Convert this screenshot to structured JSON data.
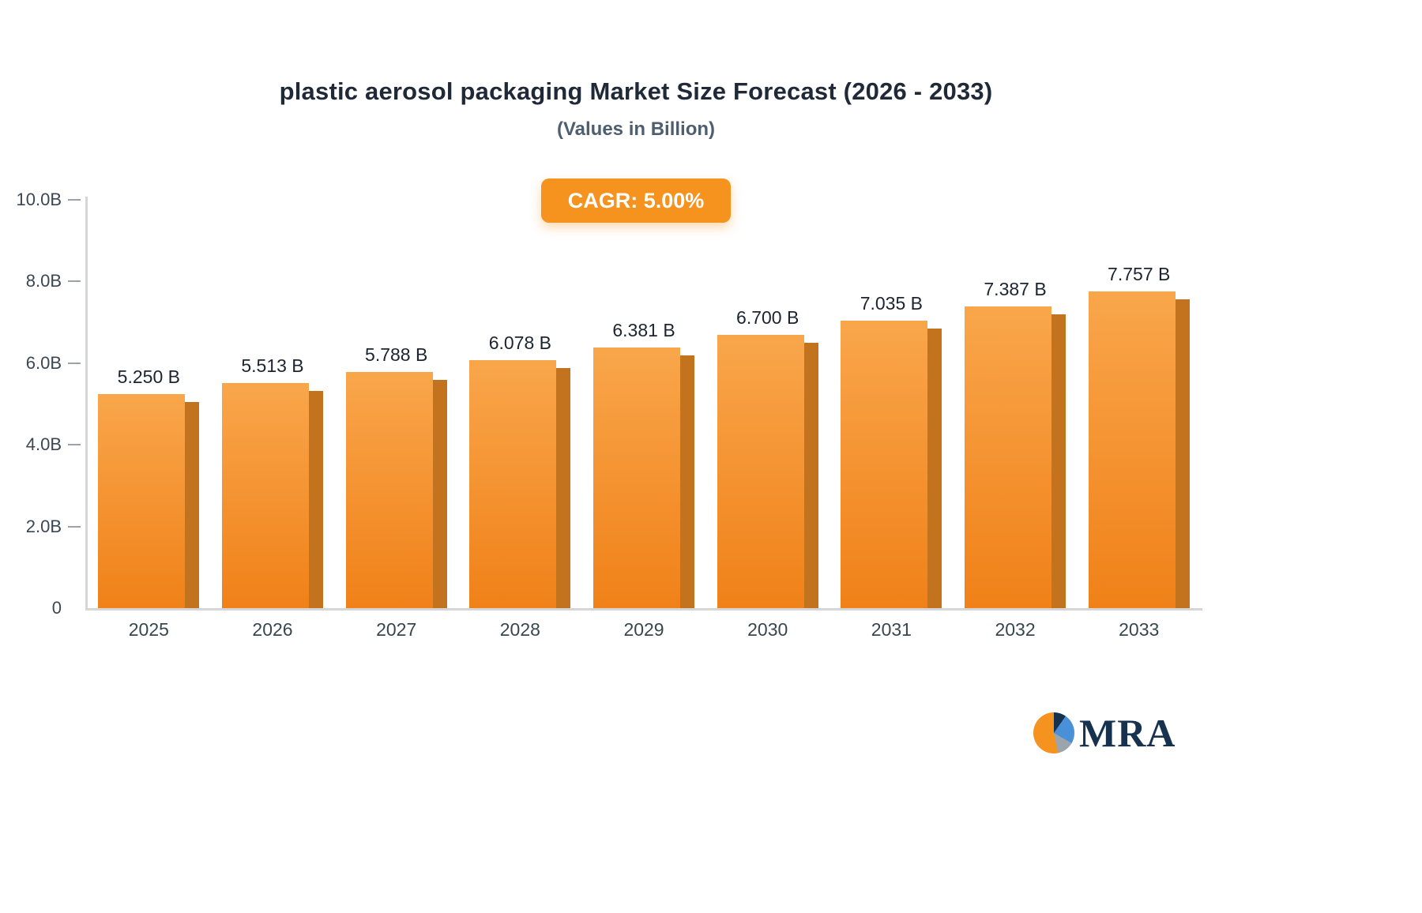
{
  "chart_data": {
    "type": "bar",
    "title": "plastic aerosol packaging Market Size Forecast (2026 - 2033)",
    "subtitle": "(Values in Billion)",
    "cagr_label": "CAGR: 5.00%",
    "categories": [
      "2025",
      "2026",
      "2027",
      "2028",
      "2029",
      "2030",
      "2031",
      "2032",
      "2033"
    ],
    "values": [
      5.25,
      5.513,
      5.788,
      6.078,
      6.381,
      6.7,
      7.035,
      7.387,
      7.757
    ],
    "value_labels": [
      "5.250 B",
      "5.513 B",
      "5.788 B",
      "6.078 B",
      "6.381 B",
      "6.700 B",
      "7.035 B",
      "7.387 B",
      "7.757 B"
    ],
    "xlabel": "",
    "ylabel": "",
    "ylim": [
      0,
      10
    ],
    "yticks": [
      {
        "value": 0,
        "label": "0"
      },
      {
        "value": 2,
        "label": "2.0B"
      },
      {
        "value": 4,
        "label": "4.0B"
      },
      {
        "value": 6,
        "label": "6.0B"
      },
      {
        "value": 8,
        "label": "8.0B"
      },
      {
        "value": 10,
        "label": "10.0B"
      }
    ],
    "grid": false,
    "legend_position": "none",
    "bar_color_top": "#f9a64b",
    "bar_color_bottom": "#f08118",
    "bar_side_color": "#c3731d"
  },
  "logo": {
    "text": "MRA",
    "icon": "pie-circle-icon"
  },
  "colors": {
    "accent_orange": "#f6921e",
    "title_text": "#1f2937",
    "subtitle_text": "#4d5e70",
    "axis_text": "#3b4754",
    "axis_line": "#d6d6d6"
  }
}
